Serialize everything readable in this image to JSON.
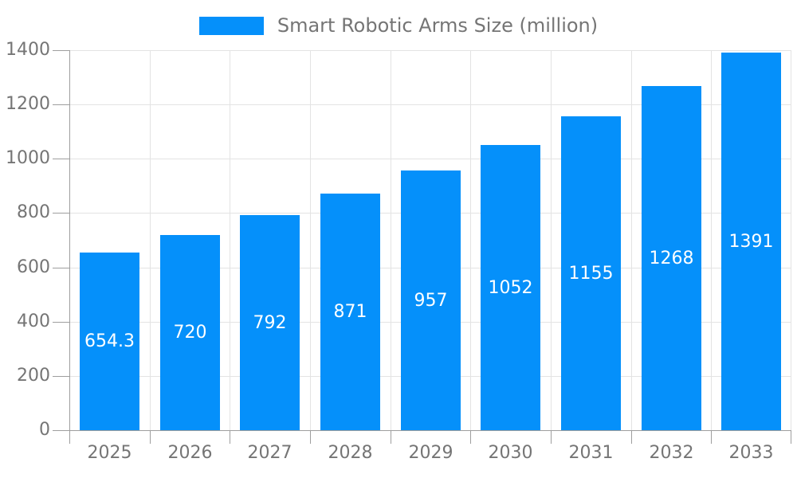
{
  "legend": {
    "label": "Smart Robotic Arms Size (million)"
  },
  "chart_data": {
    "type": "bar",
    "title": "Smart Robotic Arms Size (million)",
    "categories": [
      "2025",
      "2026",
      "2027",
      "2028",
      "2029",
      "2030",
      "2031",
      "2032",
      "2033"
    ],
    "series": [
      {
        "name": "Smart Robotic Arms Size (million)",
        "values": [
          654.3,
          720,
          792,
          871,
          957,
          1052,
          1155,
          1268,
          1391
        ]
      }
    ],
    "bar_value_labels": [
      "654.3",
      "720",
      "792",
      "871",
      "957",
      "1052",
      "1155",
      "1268",
      "1391"
    ],
    "xlabel": "",
    "ylabel": "",
    "ylim": [
      0,
      1400
    ],
    "yticks": [
      0,
      200,
      400,
      600,
      800,
      1000,
      1200,
      1400
    ],
    "grid": true,
    "legend_position": "top",
    "colors": {
      "bar": "#0590fa",
      "grid": "#e3e3e3",
      "axis": "#9e9e9e",
      "tick_label": "#757575",
      "value_label": "#ffffff",
      "background": "#ffffff"
    }
  }
}
